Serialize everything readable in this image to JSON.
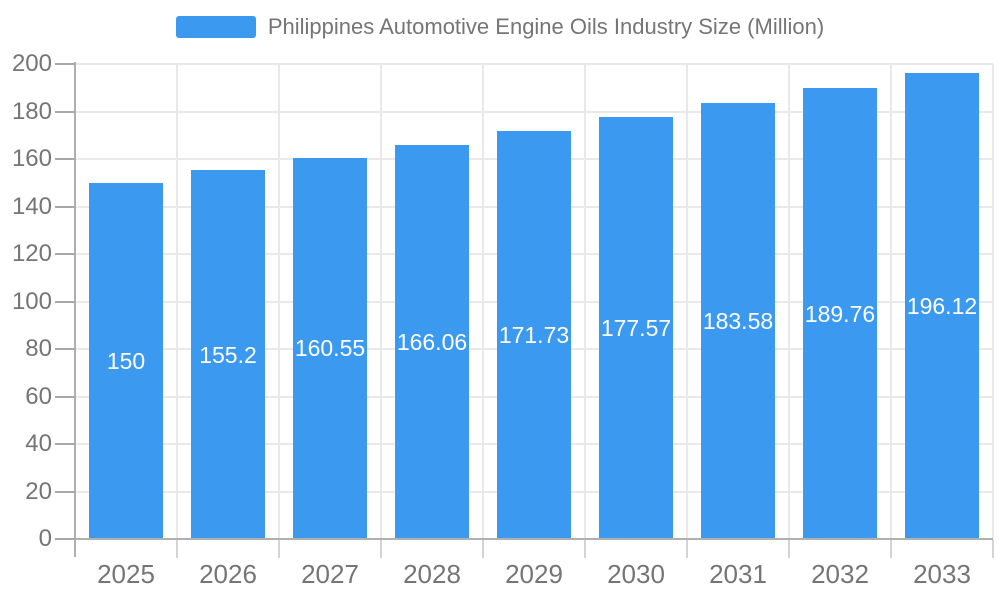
{
  "page": {
    "background": "#ffffff"
  },
  "legend": {
    "position": "top",
    "items": [
      {
        "label": "Philippines Automotive Engine Oils Industry Size (Million)",
        "color": "#3b99f0"
      }
    ]
  },
  "chart_data": {
    "type": "bar",
    "title": "Philippines Automotive Engine Oils Industry Size (Million)",
    "categories": [
      "2025",
      "2026",
      "2027",
      "2028",
      "2029",
      "2030",
      "2031",
      "2032",
      "2033"
    ],
    "values": [
      150,
      155.2,
      160.55,
      166.06,
      171.73,
      177.57,
      183.58,
      189.76,
      196.12
    ],
    "data_labels": [
      "150",
      "155.2",
      "160.55",
      "166.06",
      "171.73",
      "177.57",
      "183.58",
      "189.76",
      "196.12"
    ],
    "xlabel": "",
    "ylabel": "",
    "ylim": [
      0,
      200
    ],
    "yticks": [
      0,
      20,
      40,
      60,
      80,
      100,
      120,
      140,
      160,
      180,
      200
    ],
    "grid": true,
    "legend_position": "top",
    "colors": {
      "bar": "#3b99f0",
      "bar_label": "#ffffff",
      "axis_text": "#757575",
      "grid_line": "#e9e9e9",
      "axis_line": "#b0b0b0",
      "x_tick": "#d4d4d4",
      "y_tick": "#a8a8a8"
    }
  }
}
